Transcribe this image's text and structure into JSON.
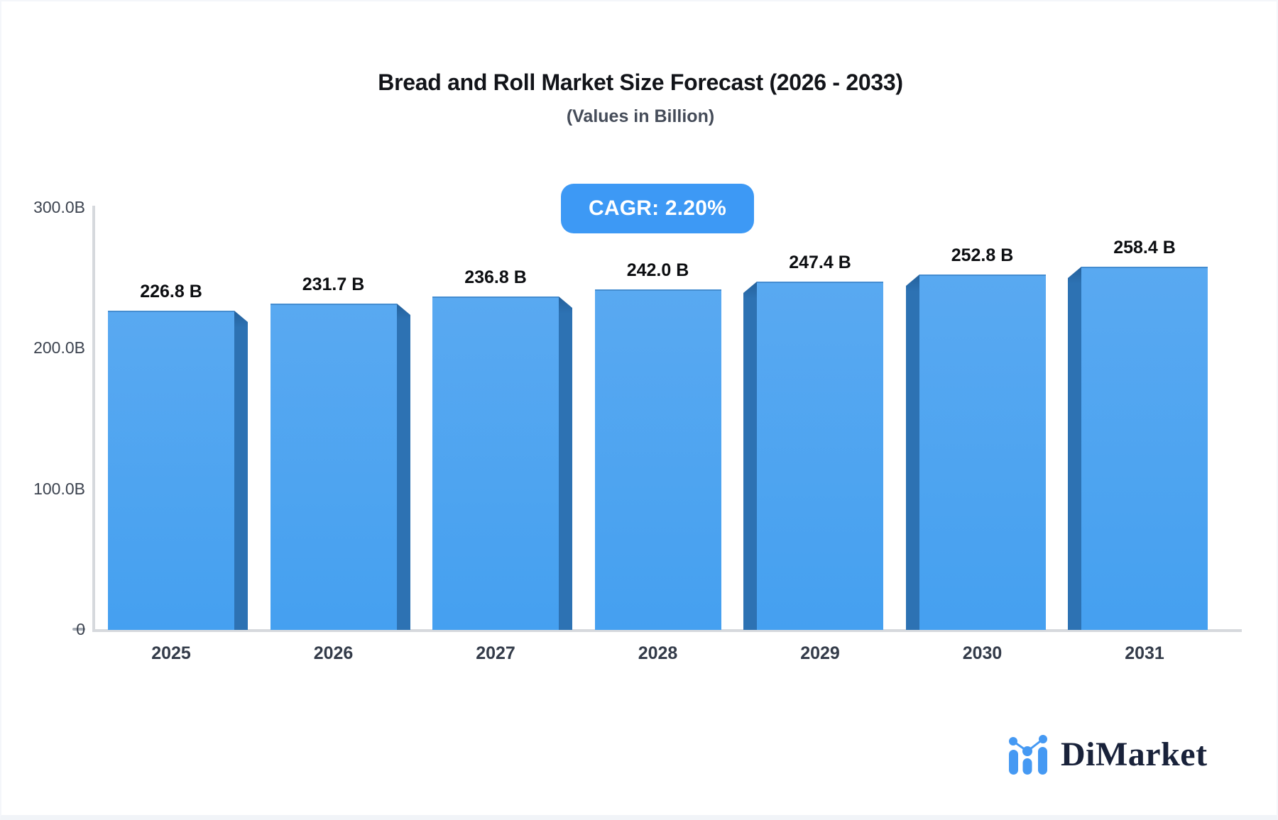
{
  "title": "Bread and Roll Market Size Forecast (2026 - 2033)",
  "subtitle": "(Values in Billion)",
  "badge": {
    "label": "CAGR: 2.20%"
  },
  "logo": {
    "text": "DiMarket"
  },
  "chart_data": {
    "type": "bar",
    "title": "Bread and Roll Market Size Forecast (2026 - 2033)",
    "subtitle": "(Values in Billion)",
    "cagr": "2.20%",
    "categories": [
      "2025",
      "2026",
      "2027",
      "2028",
      "2029",
      "2030",
      "2031"
    ],
    "values": [
      226.8,
      231.7,
      236.8,
      242.0,
      247.4,
      252.8,
      258.4
    ],
    "value_labels": [
      "226.8 B",
      "231.7 B",
      "236.8 B",
      "242.0 B",
      "247.4 B",
      "252.8 B",
      "258.4 B"
    ],
    "unit": "Billion",
    "ylim": [
      0,
      300
    ],
    "yticks": [
      {
        "label": "300.0B",
        "value": 300
      },
      {
        "label": "200.0B",
        "value": 200
      },
      {
        "label": "100.0B",
        "value": 100
      },
      {
        "label": "0",
        "value": 0
      }
    ],
    "grid": false,
    "legend": "none",
    "bar_sides": [
      "right",
      "right",
      "right",
      "none",
      "left",
      "left",
      "left"
    ],
    "colors": {
      "bar_face_top": "#59a9f1",
      "bar_face_bottom": "#45a0f0",
      "bar_side": "#2d72b3",
      "bar_side_dark": "#25619c",
      "axis_line": "#d6d9dd",
      "badge_bg": "#3d99f5",
      "logo_blue": "#4599f3"
    }
  }
}
